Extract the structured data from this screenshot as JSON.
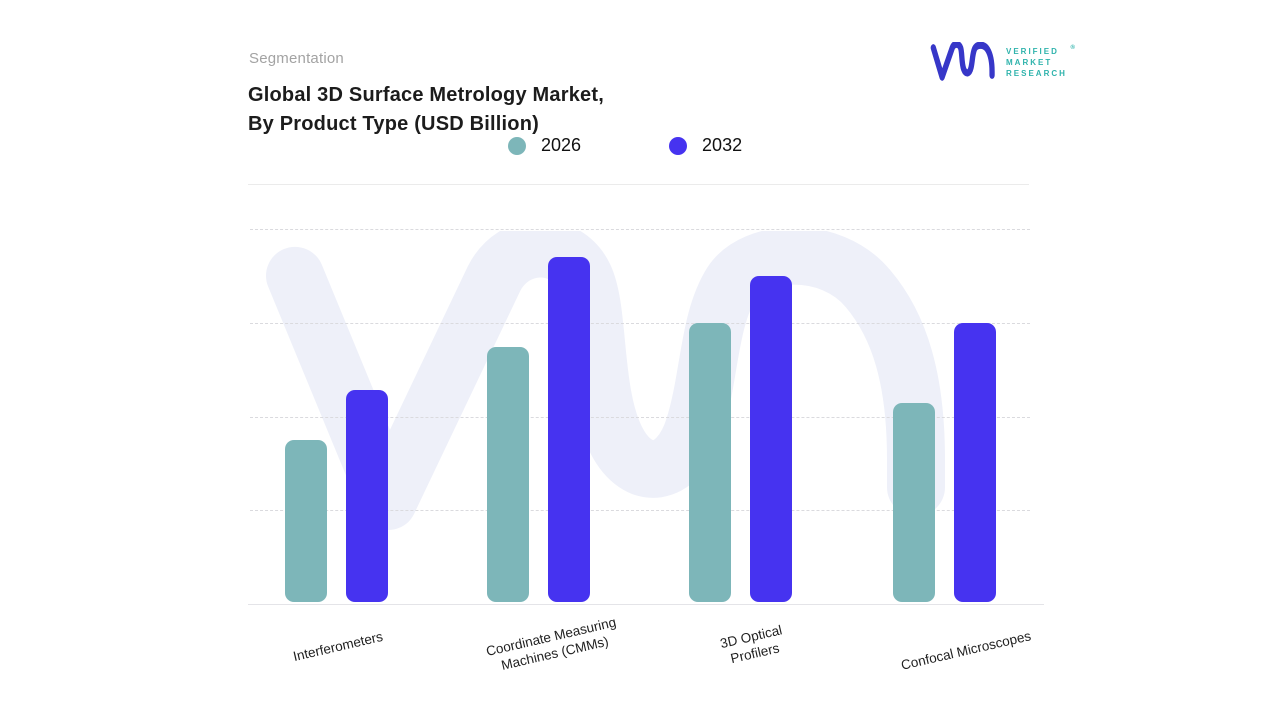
{
  "meta": {
    "eyebrow": "Segmentation",
    "title_line1": "Global 3D Surface Metrology Market,",
    "title_line2": "By Product Type (USD Billion)"
  },
  "logo": {
    "glyph": "vmr-monogram",
    "line1": "VERIFIED",
    "line2": "MARKET",
    "line3": "RESEARCH",
    "registered_mark": "®",
    "glyph_color": "#3737c8",
    "text_color": "#2fb3ac"
  },
  "colors": {
    "series_2026": "#7db6b9",
    "series_2032": "#4633f0",
    "watermark": "#eef0f9",
    "gridline": "#dadade",
    "title_text": "#1c1c1c",
    "eyebrow_text": "#a3a3a3"
  },
  "chart_data": {
    "type": "bar",
    "title": "Global 3D Surface Metrology Market, By Product Type (USD Billion)",
    "xlabel": "",
    "ylabel": "USD Billion",
    "categories": [
      "Interferometers",
      "Coordinate Measuring Machines (CMMs)",
      "3D Optical Profilers",
      "Confocal Microscopes"
    ],
    "category_label_lines": [
      [
        "Interferometers"
      ],
      [
        "Coordinate Measuring",
        "Machines (CMMs)"
      ],
      [
        "3D Optical",
        "Profilers"
      ],
      [
        "Confocal Microscopes"
      ]
    ],
    "series": [
      {
        "name": "2026",
        "color": "#7db6b9",
        "values": [
          1.73,
          2.72,
          2.98,
          2.12
        ]
      },
      {
        "name": "2032",
        "color": "#4633f0",
        "values": [
          2.26,
          3.68,
          3.48,
          2.98
        ]
      }
    ],
    "ylim": [
      0,
      4
    ],
    "y_axis_tick_labels_visible": false,
    "values_note": "y-axis has no tick labels; values estimated in gridline units",
    "grid": "horizontal dashed, 4 intervals",
    "legend_position": "top"
  }
}
